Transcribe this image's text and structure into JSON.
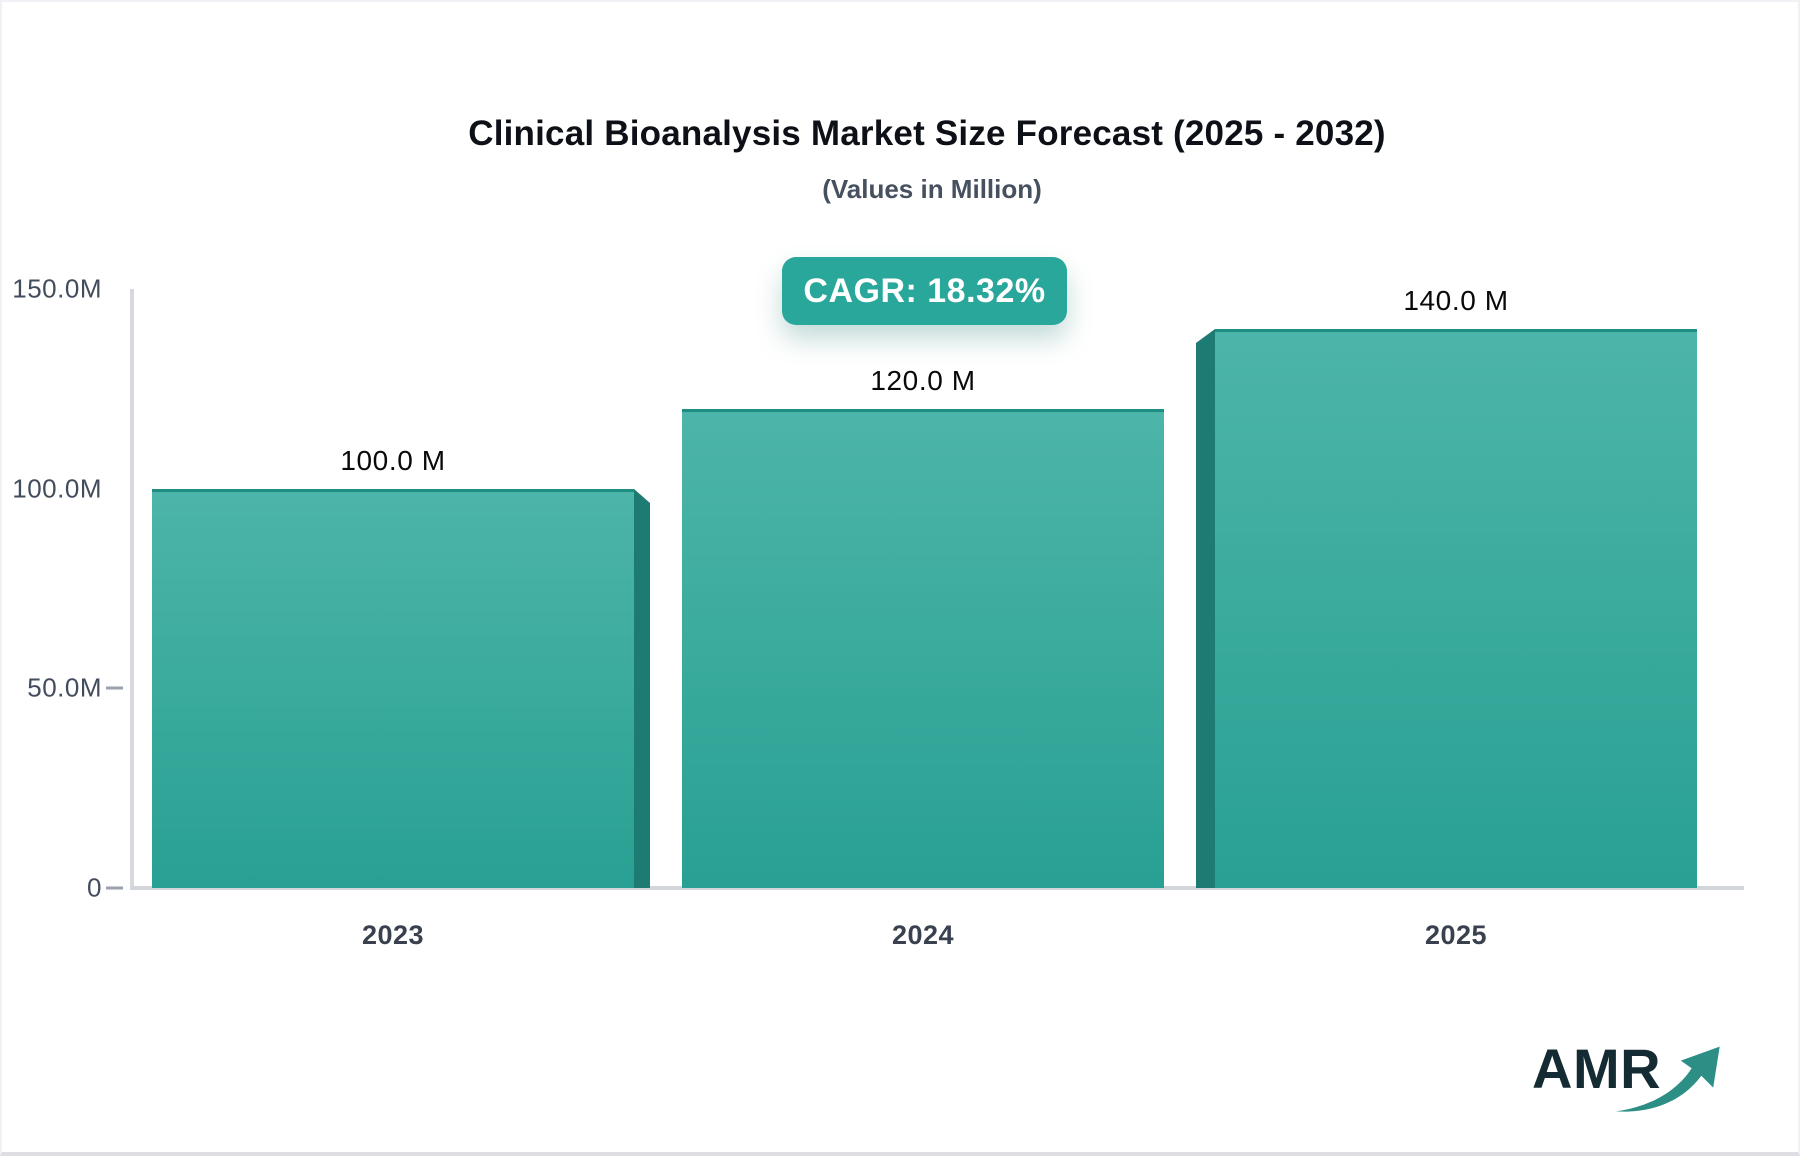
{
  "header": {
    "title": "Clinical Bioanalysis Market Size Forecast (2025 - 2032)",
    "subtitle": "(Values in Million)",
    "cagr_label": "CAGR: 18.32%"
  },
  "chart_data": {
    "type": "bar",
    "title": "Clinical Bioanalysis Market Size Forecast (2025 - 2032)",
    "subtitle": "(Values in Million)",
    "unit": "Million",
    "cagr_percent": 18.32,
    "categories": [
      "2023",
      "2024",
      "2025"
    ],
    "values": [
      100.0,
      120.0,
      140.0
    ],
    "value_labels": [
      "100.0 M",
      "120.0 M",
      "140.0 M"
    ],
    "ylim": [
      0,
      150
    ],
    "y_ticks": [
      {
        "label": "150.0M",
        "value": 150
      },
      {
        "label": "100.0M",
        "value": 100
      },
      {
        "label": "50.0M",
        "value": 50
      },
      {
        "label": "0",
        "value": 0
      }
    ],
    "grid": "off",
    "legend": "none",
    "colors": {
      "bar_top": "#4db4a9",
      "bar_bottom": "#28a093",
      "bar_side_3d": "#1e7b73",
      "accent_badge": "#2aa79b",
      "axis_line": "#d2d5da",
      "tick_text": "#424c5c"
    }
  },
  "logo": {
    "text": "AMR",
    "icon": "trend-arrow-icon",
    "text_color": "#152b33",
    "arrow_color": "#2d8e86"
  }
}
